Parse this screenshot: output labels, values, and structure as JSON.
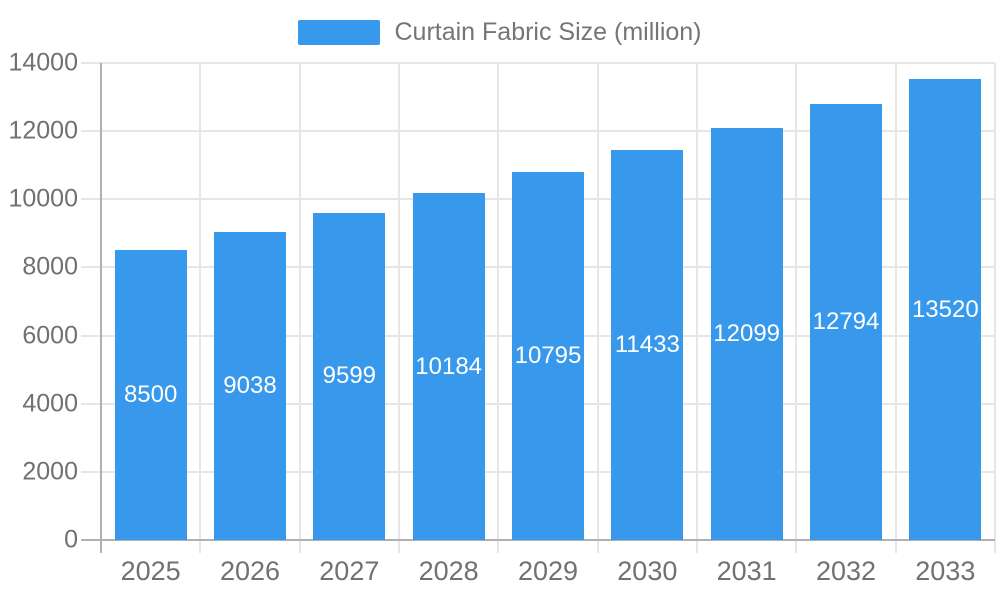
{
  "legend": {
    "label": "Curtain Fabric Size (million)"
  },
  "colors": {
    "bar": "#3899ec",
    "grid": "#e6e6e6",
    "axis": "#b0b0b0",
    "axis_text": "#717171",
    "legend_text": "#757575",
    "bar_label_text": "#ffffff"
  },
  "chart_data": {
    "type": "bar",
    "title": "Curtain Fabric Size (million)",
    "series_name": "Curtain Fabric Size (million)",
    "categories": [
      "2025",
      "2026",
      "2027",
      "2028",
      "2029",
      "2030",
      "2031",
      "2032",
      "2033"
    ],
    "values": [
      8500,
      9038,
      9599,
      10184,
      10795,
      11433,
      12099,
      12794,
      13520
    ],
    "xlabel": "",
    "ylabel": "",
    "ylim": [
      0,
      14000
    ],
    "y_ticks": [
      0,
      2000,
      4000,
      6000,
      8000,
      10000,
      12000,
      14000
    ],
    "grid": true,
    "legend_position": "top",
    "bar_labels_inside": true
  }
}
